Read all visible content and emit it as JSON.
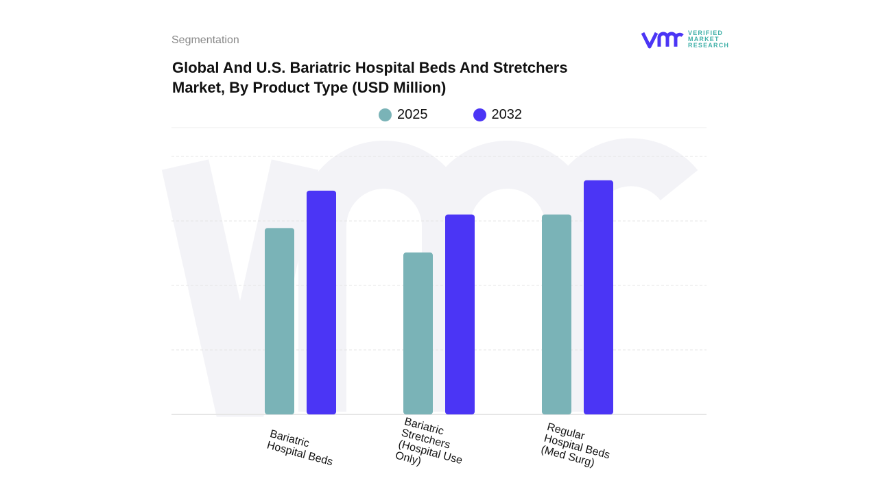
{
  "header": {
    "section": "Segmentation",
    "title": "Global And U.S. Bariatric Hospital Beds And Stretchers Market, By Product Type (USD Million)"
  },
  "logo": {
    "line1": "VERIFIED",
    "line2": "MARKET",
    "line3": "RESEARCH"
  },
  "chart_data": {
    "type": "bar",
    "title": "Global And U.S. Bariatric Hospital Beds And Stretchers Market, By Product Type (USD Million)",
    "categories": [
      "Bariatric\nHospital Beds",
      "Bariatric\nStretchers\n(Hospital Use\nOnly)",
      "Regular\nHospital Beds\n(Med Surg)"
    ],
    "series": [
      {
        "name": "2025",
        "color": "#7ab3b7",
        "values": [
          2.89,
          2.51,
          3.1
        ]
      },
      {
        "name": "2032",
        "color": "#4b35f5",
        "values": [
          3.47,
          3.1,
          3.63
        ]
      }
    ],
    "ylim": [
      0,
      4
    ],
    "grid": true,
    "legend": "top-center",
    "xlabel": "",
    "ylabel": ""
  }
}
